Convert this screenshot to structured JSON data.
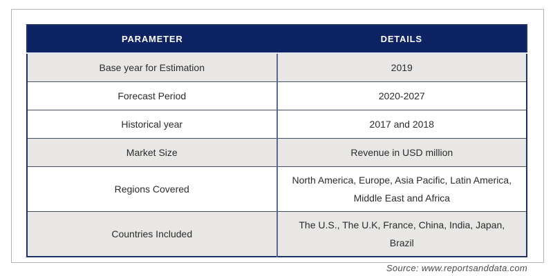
{
  "chart_data": {
    "type": "table",
    "columns": [
      "PARAMETER",
      "DETAILS"
    ],
    "rows": [
      [
        "Base year for Estimation",
        "2019"
      ],
      [
        "Forecast Period",
        "2020-2027"
      ],
      [
        "Historical year",
        "2017 and 2018"
      ],
      [
        "Market Size",
        "Revenue in USD million"
      ],
      [
        "Regions Covered",
        "North America, Europe, Asia Pacific, Latin America, Middle East and Africa"
      ],
      [
        "Countries Included",
        "The U.S., The U.K, France, China, India, Japan, Brazil"
      ]
    ],
    "source": "Source: www.reportsanddata.com"
  },
  "colors": {
    "header_bg": "#0e2363",
    "header_text": "#ffffff",
    "row_alt_bg": "#e8e7e5",
    "table_border": "#1f3067",
    "column_divider": "#57688f",
    "row_border": "#414d5e",
    "cell_text": "#2b2b2b",
    "source_text": "#4a4a4a",
    "frame_border": "#b3b3b3"
  }
}
